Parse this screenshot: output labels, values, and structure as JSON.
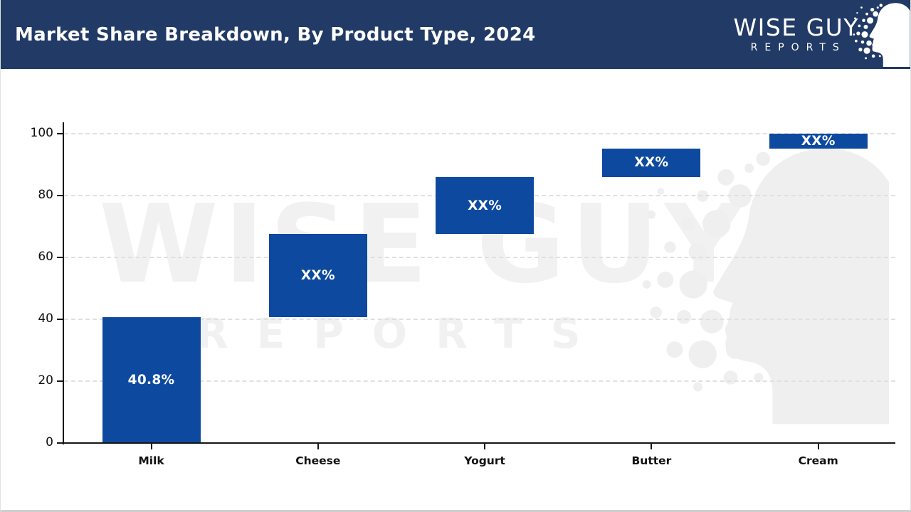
{
  "header": {
    "title": "Market Share Breakdown, By Product Type, 2024",
    "logo": {
      "line1": "WISE GUY",
      "line2": "REPORTS"
    }
  },
  "watermark": {
    "line1": "WISE GUY",
    "line2": "REPORTS"
  },
  "chart_data": {
    "type": "bar",
    "subtype": "waterfall",
    "title": "Market Share Breakdown, By Product Type, 2024",
    "xlabel": "",
    "ylabel": "",
    "categories": [
      "Milk",
      "Cheese",
      "Yogurt",
      "Butter",
      "Cream"
    ],
    "segments": [
      {
        "category": "Milk",
        "start": 0,
        "end": 40.8,
        "label": "40.8%"
      },
      {
        "category": "Cheese",
        "start": 40.8,
        "end": 67.5,
        "label": "XX%"
      },
      {
        "category": "Yogurt",
        "start": 67.5,
        "end": 86.0,
        "label": "XX%"
      },
      {
        "category": "Butter",
        "start": 86.0,
        "end": 95.2,
        "label": "XX%"
      },
      {
        "category": "Cream",
        "start": 95.2,
        "end": 100.0,
        "label": "XX%"
      }
    ],
    "ylim": [
      0,
      100
    ],
    "yticks": [
      0,
      20,
      40,
      60,
      80,
      100
    ],
    "grid": "horizontal-dashed",
    "legend": "none",
    "bar_color": "#0d4a9f",
    "value_label_color": "#ffffff"
  },
  "colors": {
    "header_bg": "#213a66",
    "bar": "#0d4a9f",
    "axis": "#161616",
    "gridline": "#e0e0e0",
    "watermark": "#f1f1f1",
    "title_text": "#ffffff"
  }
}
